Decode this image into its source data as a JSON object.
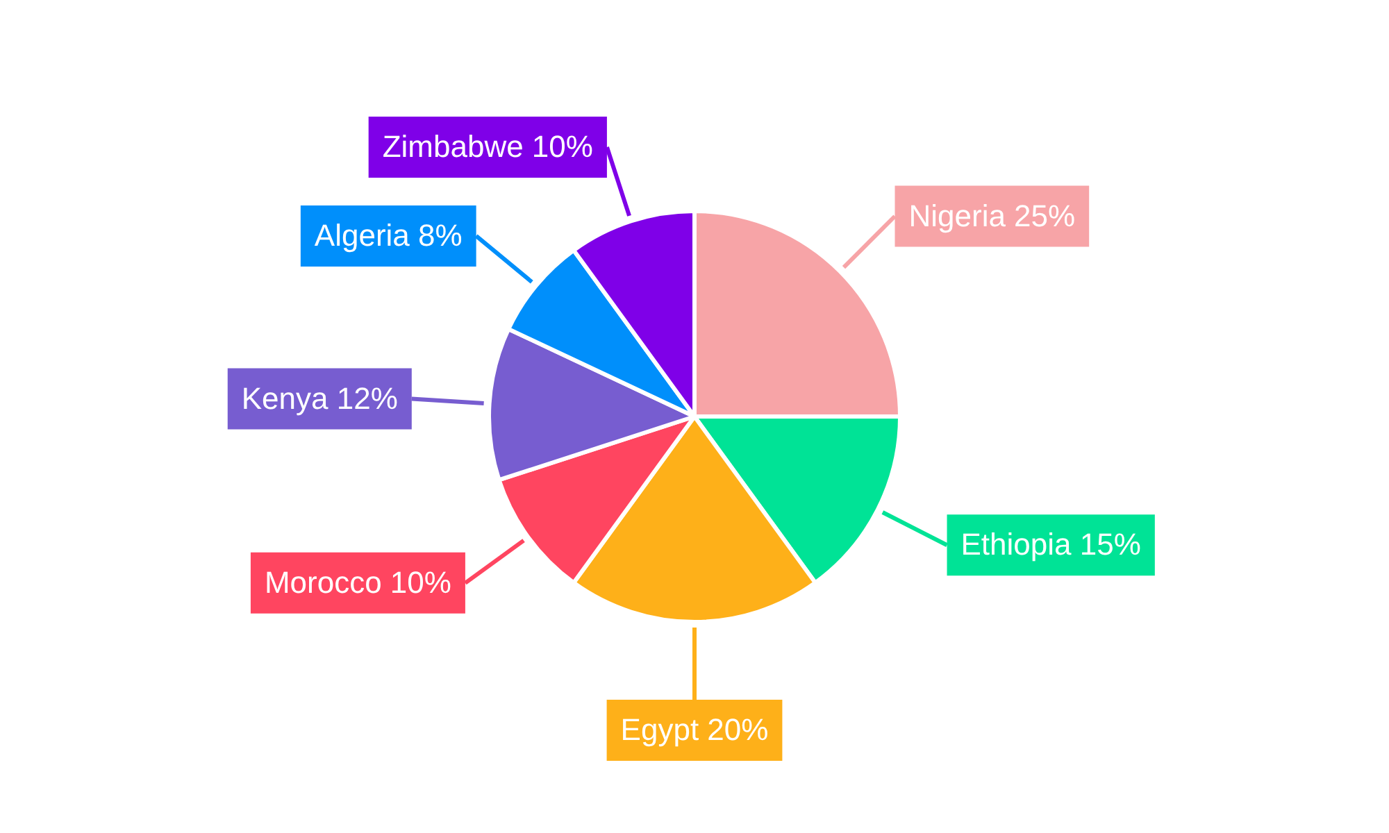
{
  "chart_data": {
    "type": "pie",
    "categories": [
      "Nigeria",
      "Ethiopia",
      "Egypt",
      "Morocco",
      "Kenya",
      "Algeria",
      "Zimbabwe"
    ],
    "values": [
      25,
      15,
      20,
      10,
      12,
      8,
      10
    ],
    "colors": [
      "#f7a4a7",
      "#00e396",
      "#feb019",
      "#ff4560",
      "#775dd0",
      "#008ffb",
      "#7f00e8"
    ],
    "value_labels": [
      "25%",
      "15%",
      "20%",
      "10%",
      "12%",
      "8%",
      "10%"
    ]
  }
}
